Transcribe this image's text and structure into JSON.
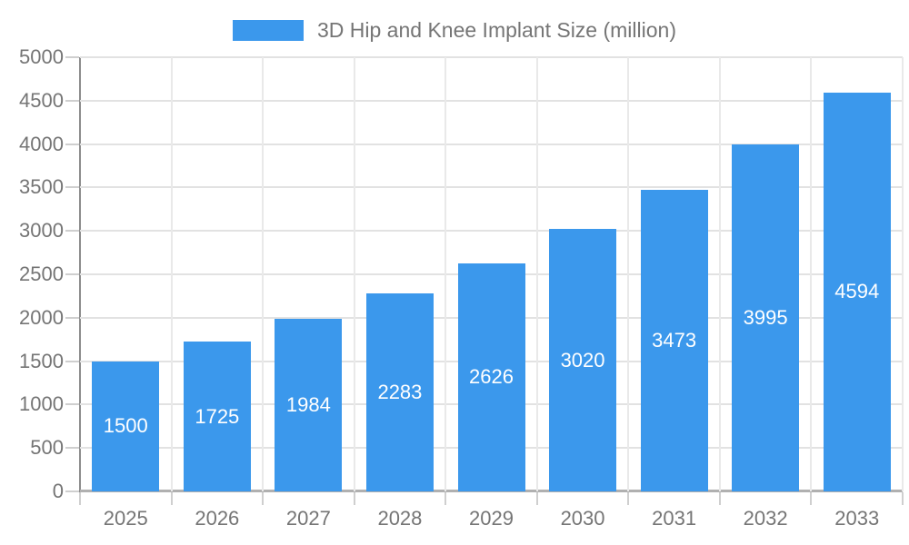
{
  "chart_data": {
    "type": "bar",
    "title": "3D Hip and Knee Implant Size (million)",
    "categories": [
      "2025",
      "2026",
      "2027",
      "2028",
      "2029",
      "2030",
      "2031",
      "2032",
      "2033"
    ],
    "values": [
      1500,
      1725,
      1984,
      2283,
      2626,
      3020,
      3473,
      3995,
      4594
    ],
    "xlabel": "",
    "ylabel": "",
    "ylim": [
      0,
      5000
    ],
    "ytick_step": 500,
    "yticks": [
      "0",
      "500",
      "1000",
      "1500",
      "2000",
      "2500",
      "3000",
      "3500",
      "4000",
      "4500",
      "5000"
    ],
    "grid": true,
    "legend_position": "top-center",
    "colors": {
      "bar": "#3b98ec",
      "value_label": "#ffffff",
      "axis_text": "#757575",
      "grid_horizontal": "#e2e2e2",
      "grid_vertical": "#e9e9e9",
      "y_axis_line": "#8c8c8c",
      "x_axis_line": "#b0b0b0",
      "tick": "#cfcfcf",
      "background": "#ffffff"
    }
  }
}
